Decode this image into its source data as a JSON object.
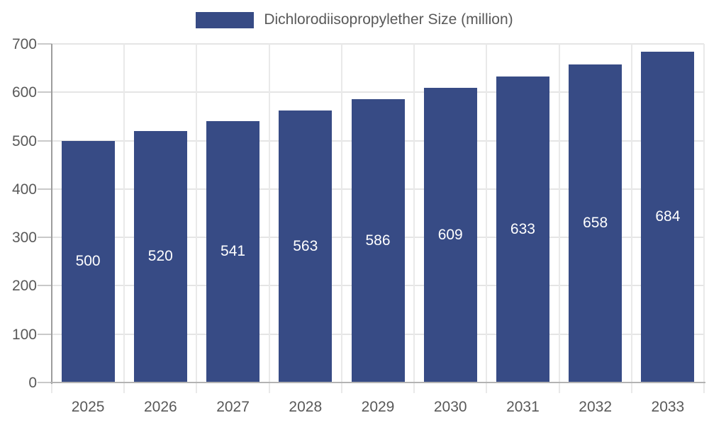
{
  "legend": {
    "label": "Dichlorodiisopropylether Size (million)"
  },
  "colors": {
    "bar": "#374b85",
    "axis_text": "#595959",
    "value_label_text": "#ffffff",
    "gridline": "#e7e7e7",
    "axis_line": "#a6a6a6",
    "background": "#ffffff"
  },
  "chart_data": {
    "type": "bar",
    "title": "",
    "xlabel": "",
    "ylabel": "",
    "categories": [
      "2025",
      "2026",
      "2027",
      "2028",
      "2029",
      "2030",
      "2031",
      "2032",
      "2033"
    ],
    "series": [
      {
        "name": "Dichlorodiisopropylether Size (million)",
        "values": [
          500,
          520,
          541,
          563,
          586,
          609,
          633,
          658,
          684
        ]
      }
    ],
    "value_labels_shown": true,
    "ylim": [
      0,
      700
    ],
    "yticks": [
      0,
      100,
      200,
      300,
      400,
      500,
      600,
      700
    ],
    "grid": true,
    "legend_position": "top-center"
  }
}
